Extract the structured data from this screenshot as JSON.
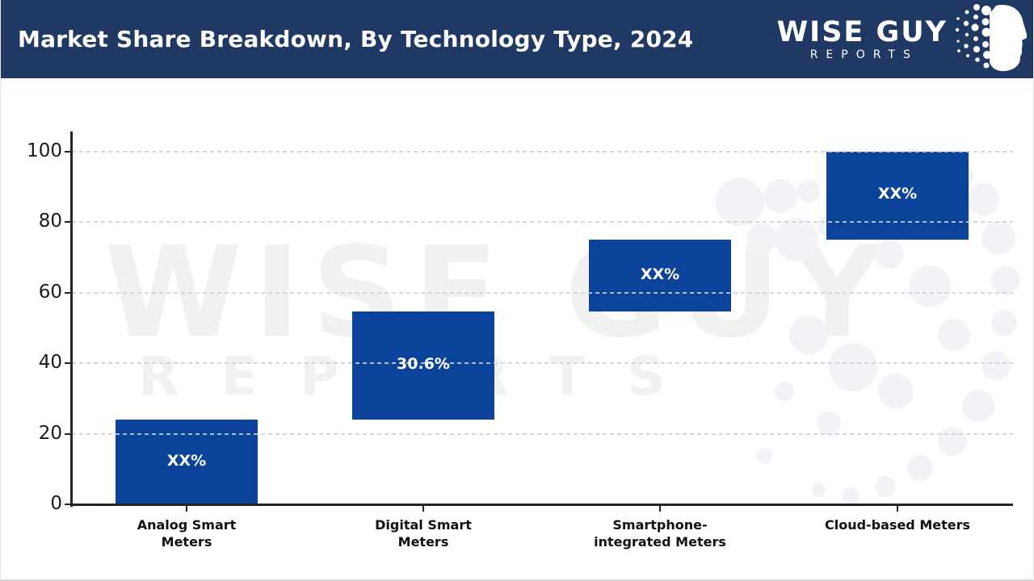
{
  "header": {
    "title": "Market Share Breakdown, By Technology Type, 2024",
    "logo": {
      "line1": "WISE GUY",
      "line2": "REPORTS"
    }
  },
  "watermark": {
    "line1": "WISE GUY",
    "line2": "REPORTS"
  },
  "chart_data": {
    "type": "bar",
    "subtype": "floating-segment-waterfall",
    "title": "Market Share Breakdown, By Technology Type, 2024",
    "xlabel": "",
    "ylabel": "",
    "ylim": [
      0,
      105
    ],
    "yticks": [
      0,
      20,
      40,
      60,
      80,
      100
    ],
    "grid": "dashed-horizontal",
    "legend": "none",
    "bar_color": "#0a4399",
    "value_label_color": "#ffffff",
    "categories": [
      "Analog Smart Meters",
      "Digital Smart Meters",
      "Smartphone-integrated Meters",
      "Cloud-based Meters"
    ],
    "bars": [
      {
        "category_lines": [
          "Analog Smart",
          "Meters"
        ],
        "start": 0,
        "end": 24,
        "value_label": "XX%"
      },
      {
        "category_lines": [
          "Digital Smart",
          "Meters"
        ],
        "start": 24,
        "end": 54.6,
        "value_label": "30.6%"
      },
      {
        "category_lines": [
          "Smartphone-",
          "integrated Meters"
        ],
        "start": 54.6,
        "end": 75,
        "value_label": "XX%"
      },
      {
        "category_lines": [
          "Cloud-based Meters"
        ],
        "start": 75,
        "end": 100,
        "value_label": "XX%"
      }
    ]
  },
  "colors": {
    "header_bg": "#1f3864",
    "bar": "#0a4399",
    "axis": "#262626",
    "grid": "#d9d9d9",
    "watermark": "#f1f1f1"
  }
}
